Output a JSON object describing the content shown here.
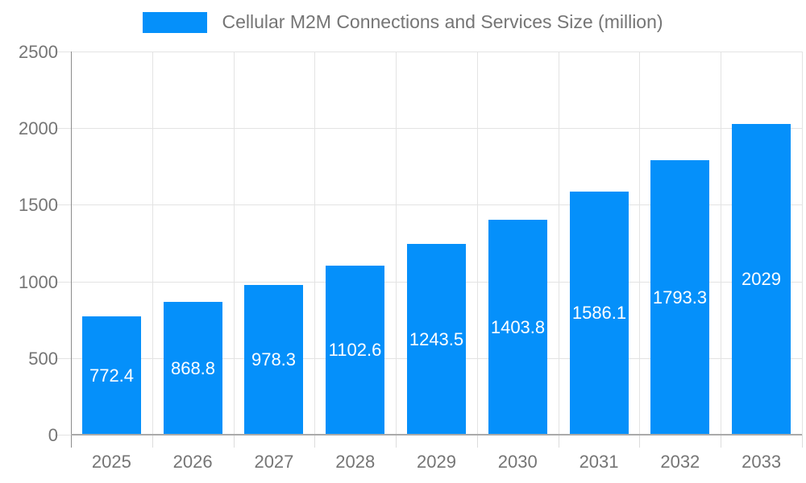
{
  "chart_data": {
    "type": "bar",
    "title": "Cellular M2M Connections and Services Size (million)",
    "legend": "Cellular M2M Connections and Services Size (million)",
    "legend_position": "top",
    "categories": [
      "2025",
      "2026",
      "2027",
      "2028",
      "2029",
      "2030",
      "2031",
      "2032",
      "2033"
    ],
    "values": [
      772.4,
      868.8,
      978.3,
      1102.6,
      1243.5,
      1403.8,
      1586.1,
      1793.3,
      2029
    ],
    "value_labels": [
      "772.4",
      "868.8",
      "978.3",
      "1102.6",
      "1243.5",
      "1403.8",
      "1586.1",
      "1793.3",
      "2029"
    ],
    "xlabel": "",
    "ylabel": "",
    "ylim": [
      0,
      2500
    ],
    "yticks": [
      0,
      500,
      1000,
      1500,
      2000,
      2500
    ],
    "grid": true,
    "colors": {
      "bar": "#0590fa",
      "bar_value_label": "#ffffff",
      "tick_label": "#757575",
      "legend_text": "#757575",
      "gridline": "#e3e3e3",
      "axis_line": "#8c8c8c"
    }
  }
}
